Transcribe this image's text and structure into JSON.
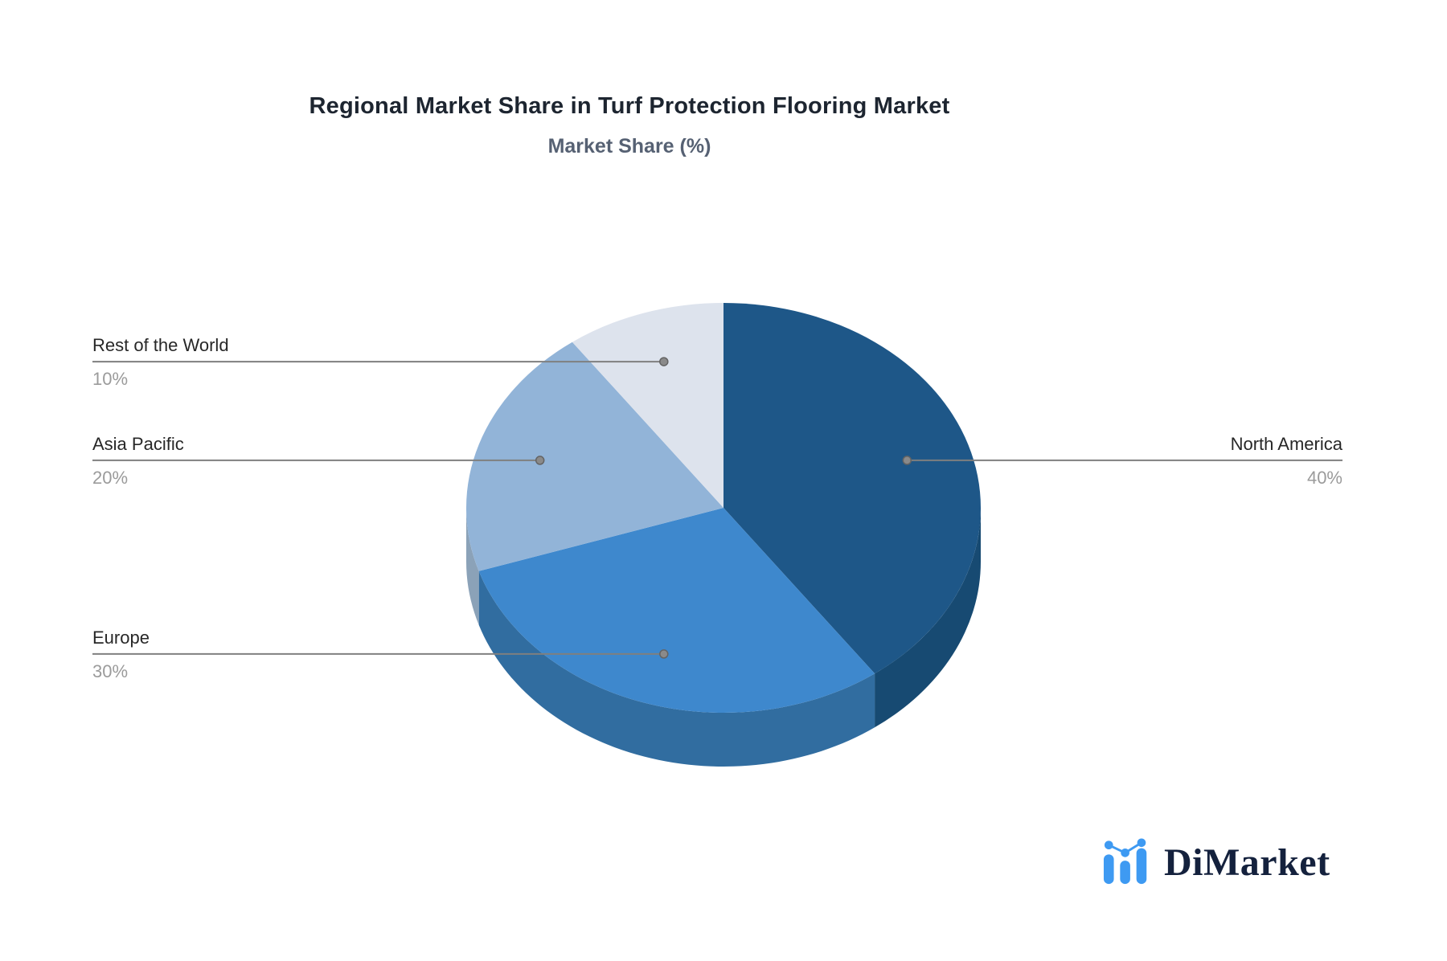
{
  "title": "Regional Market Share in Turf Protection Flooring Market",
  "subtitle": "Market Share (%)",
  "logo": {
    "text": "DiMarket",
    "icon_color": "#3e9af2",
    "text_color": "#14213d"
  },
  "chart_data": {
    "type": "pie",
    "title": "Regional Market Share in Turf Protection Flooring Market",
    "subtitle": "Market Share (%)",
    "unit": "%",
    "style": "3d-pie",
    "start_angle_deg": 0,
    "direction": "clockwise",
    "legend_position": "leader-lines",
    "slices": [
      {
        "label": "North America",
        "value": 40,
        "color": "#1e5788",
        "side_color": "#174a72",
        "label_side": "right"
      },
      {
        "label": "Europe",
        "value": 30,
        "color": "#3e88cd",
        "side_color": "#316da0",
        "label_side": "left"
      },
      {
        "label": "Asia Pacific",
        "value": 20,
        "color": "#92b4d8",
        "side_color": "#8ba2b8",
        "label_side": "left"
      },
      {
        "label": "Rest of the World",
        "value": 10,
        "color": "#dde3ed",
        "side_color": "#c2cad6",
        "label_side": "left"
      }
    ],
    "leader_line_color": "#7f7f7f",
    "label_color": "#272727",
    "percent_color": "#9b9b9b"
  }
}
